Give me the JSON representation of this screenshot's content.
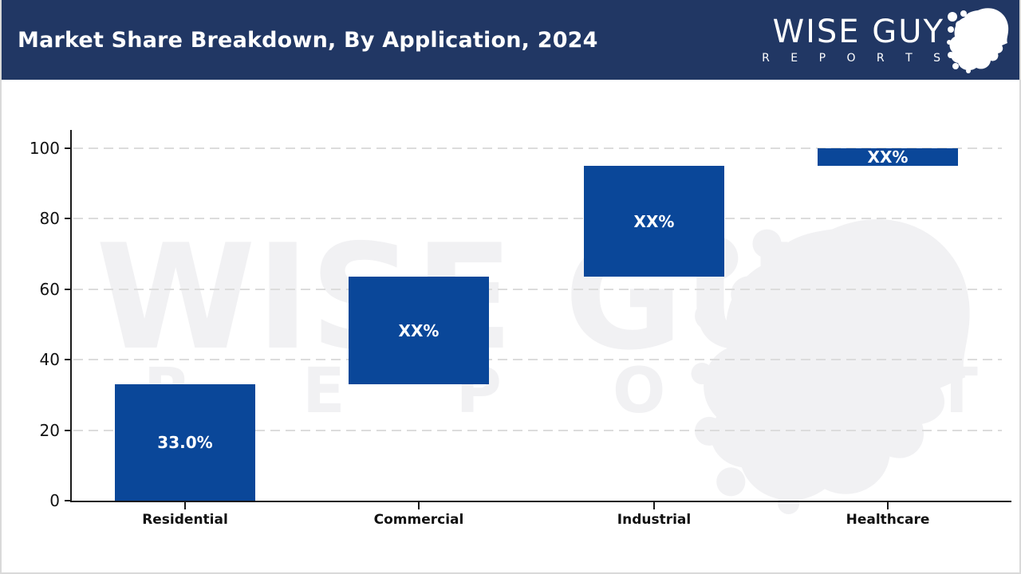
{
  "header": {
    "title": "Market Share Breakdown, By Application, 2024",
    "bg_color": "#213764",
    "logo": {
      "line1": "WISE GUY",
      "line2": "R E P O R T S"
    }
  },
  "watermark": {
    "line1": "WISE GUY",
    "line2": "R E P O R T S"
  },
  "chart_data": {
    "type": "bar",
    "subtype": "floating-segment-waterfall",
    "title": "Market Share Breakdown, By Application, 2024",
    "categories": [
      "Residential",
      "Commercial",
      "Industrial",
      "Healthcare"
    ],
    "segments": [
      {
        "category": "Residential",
        "from": 0,
        "to": 33.0,
        "label": "33.0%"
      },
      {
        "category": "Commercial",
        "from": 33.0,
        "to": 63.5,
        "label": "XX%"
      },
      {
        "category": "Industrial",
        "from": 63.5,
        "to": 95.0,
        "label": "XX%"
      },
      {
        "category": "Healthcare",
        "from": 95.0,
        "to": 100.0,
        "label": "XX%"
      }
    ],
    "xlabel": "",
    "ylabel": "",
    "ylim": [
      0,
      105
    ],
    "yticks": [
      0,
      20,
      40,
      60,
      80,
      100
    ],
    "grid": "horizontal-dashed",
    "legend": "none",
    "bar_color": "#0a4799",
    "bar_label_color": "#ffffff",
    "axis_color": "#1a1a1a",
    "grid_color": "#dcdcdc"
  }
}
